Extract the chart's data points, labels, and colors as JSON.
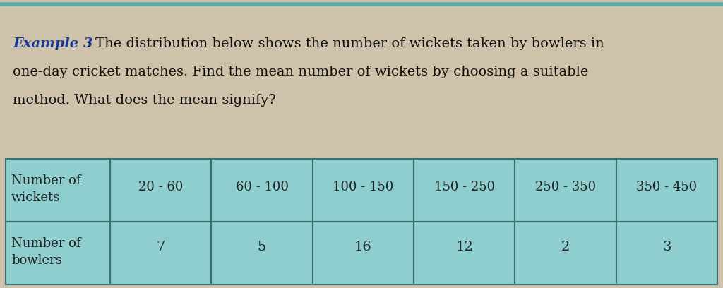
{
  "row1_header": "Number of\nwickets",
  "row2_header": "Number of\nbowlers",
  "col_headers": [
    "20 - 60",
    "60 - 100",
    "100 - 150",
    "150 - 250",
    "250 - 350",
    "350 - 450"
  ],
  "col_values": [
    "7",
    "5",
    "16",
    "12",
    "2",
    "3"
  ],
  "table_bg": "#8ecece",
  "page_bg": "#cec3aa",
  "border_color": "#3a7070",
  "text_color": "#222222",
  "title_color": "#111111",
  "example_color": "#1a3a9a",
  "top_line_color": "#5aabab",
  "figsize": [
    10.24,
    4.08
  ],
  "dpi": 100,
  "title_line1_prefix": "Example 3",
  "title_line1_suffix": " : The distribution below shows the number of wickets taken by bowlers in",
  "title_line2": "one-day cricket matches. Find the mean number of wickets by choosing a suitable",
  "title_line3": "method. What does the mean signify?"
}
